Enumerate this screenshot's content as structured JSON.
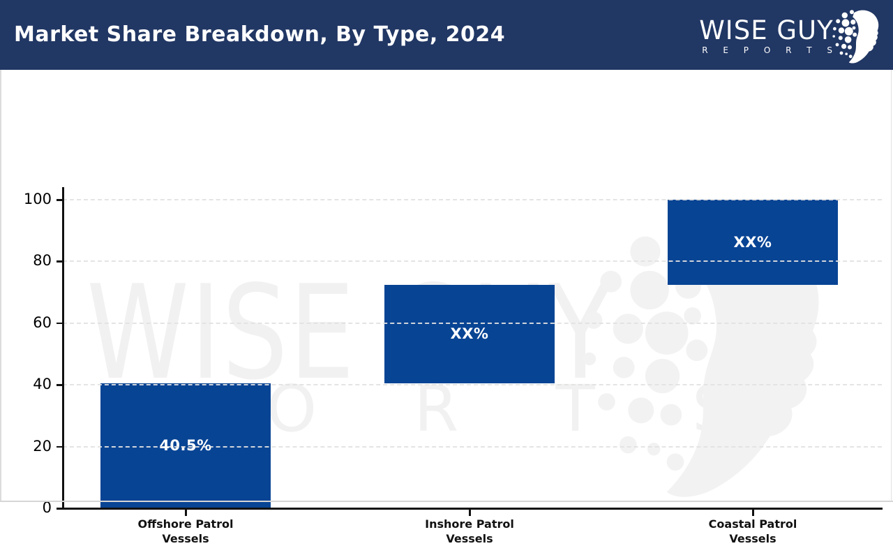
{
  "header": {
    "title": "Market Share Breakdown, By Type, 2024",
    "bg_color": "#213764",
    "logo": {
      "line1": "WISE GUY",
      "line2": "R E P O R T S",
      "head_icon": "dotted-head-profile"
    }
  },
  "watermark": {
    "line1": "WISE GUY",
    "line2": "REPORTS",
    "line2_display": "P O R T S",
    "head_icon": "dotted-head-profile"
  },
  "chart_data": {
    "type": "bar",
    "variant": "floating-segment-waterfall",
    "title": "Market Share Breakdown, By Type, 2024",
    "categories": [
      "Offshore Patrol Vessels",
      "Inshore Patrol Vessels",
      "Coastal Patrol Vessels"
    ],
    "categories_wrapped": [
      [
        "Offshore Patrol",
        "Vessels"
      ],
      [
        "Inshore Patrol",
        "Vessels"
      ],
      [
        "Coastal Patrol",
        "Vessels"
      ]
    ],
    "bars": [
      {
        "category": "Offshore Patrol Vessels",
        "start": 0,
        "end": 40.5,
        "label": "40.5%"
      },
      {
        "category": "Inshore Patrol Vessels",
        "start": 40.5,
        "end": 72.5,
        "label": "XX%"
      },
      {
        "category": "Coastal Patrol Vessels",
        "start": 72.5,
        "end": 100,
        "label": "XX%"
      }
    ],
    "ylim": [
      0,
      103.5
    ],
    "yticks": [
      0,
      20,
      40,
      60,
      80,
      100
    ],
    "xlabel": "",
    "ylabel": "",
    "grid": {
      "axis": "y",
      "style": "dashed",
      "color": "#e2e2e2",
      "on": true
    },
    "legend": null,
    "bar_color": "#084494",
    "bar_label_color": "#ffffff",
    "axis_color": "#111111"
  }
}
